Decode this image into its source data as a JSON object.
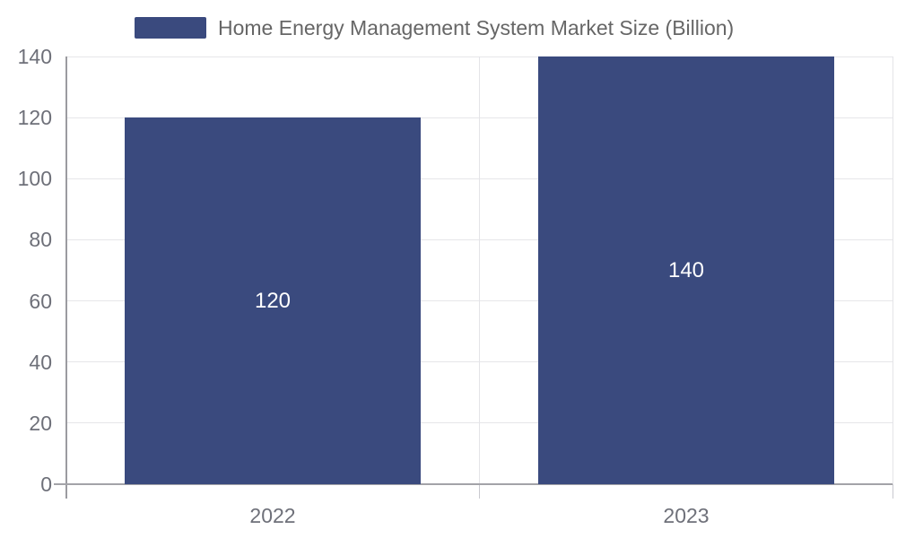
{
  "chart_data": {
    "type": "bar",
    "title": "Home Energy Management System Market Size (Billion)",
    "categories": [
      "2022",
      "2023"
    ],
    "series": [
      {
        "name": "Home Energy Management System Market Size (Billion)",
        "values": [
          120,
          140
        ]
      }
    ],
    "value_labels": [
      "120",
      "140"
    ],
    "xlabel": "",
    "ylabel": "",
    "ylim": [
      0,
      140
    ],
    "yticks": [
      0,
      20,
      40,
      60,
      80,
      100,
      120,
      140
    ],
    "grid": true,
    "legend_position": "top",
    "colors": {
      "bar": "#3A4A7E",
      "value_label": "#FFFFFF",
      "grid_line": "#E6E6E9",
      "axis_line": "#A3A3A8",
      "tick_label": "#6E7079",
      "legend_text": "#666666"
    }
  }
}
